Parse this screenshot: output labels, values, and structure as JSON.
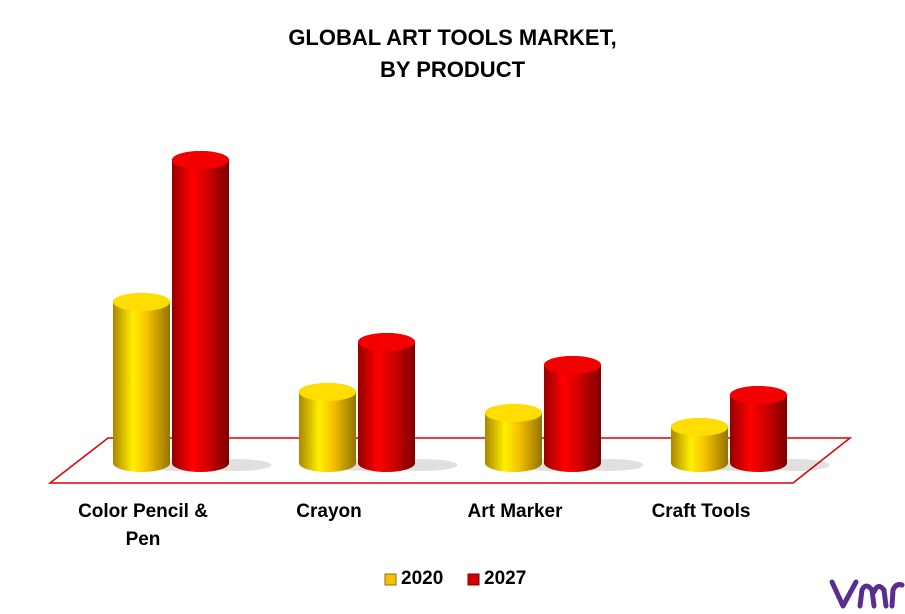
{
  "chart_data": {
    "type": "bar",
    "title": "GLOBAL ART TOOLS MARKET,\nBY PRODUCT",
    "categories": [
      "Color Pencil & Pen",
      "Crayon",
      "Art Marker",
      "Craft Tools"
    ],
    "series": [
      {
        "name": "2020",
        "color": "#f5c000",
        "values": [
          161,
          71,
          50,
          36
        ]
      },
      {
        "name": "2027",
        "color": "#d40000",
        "values": [
          303,
          121,
          98,
          68
        ]
      }
    ]
  }
}
